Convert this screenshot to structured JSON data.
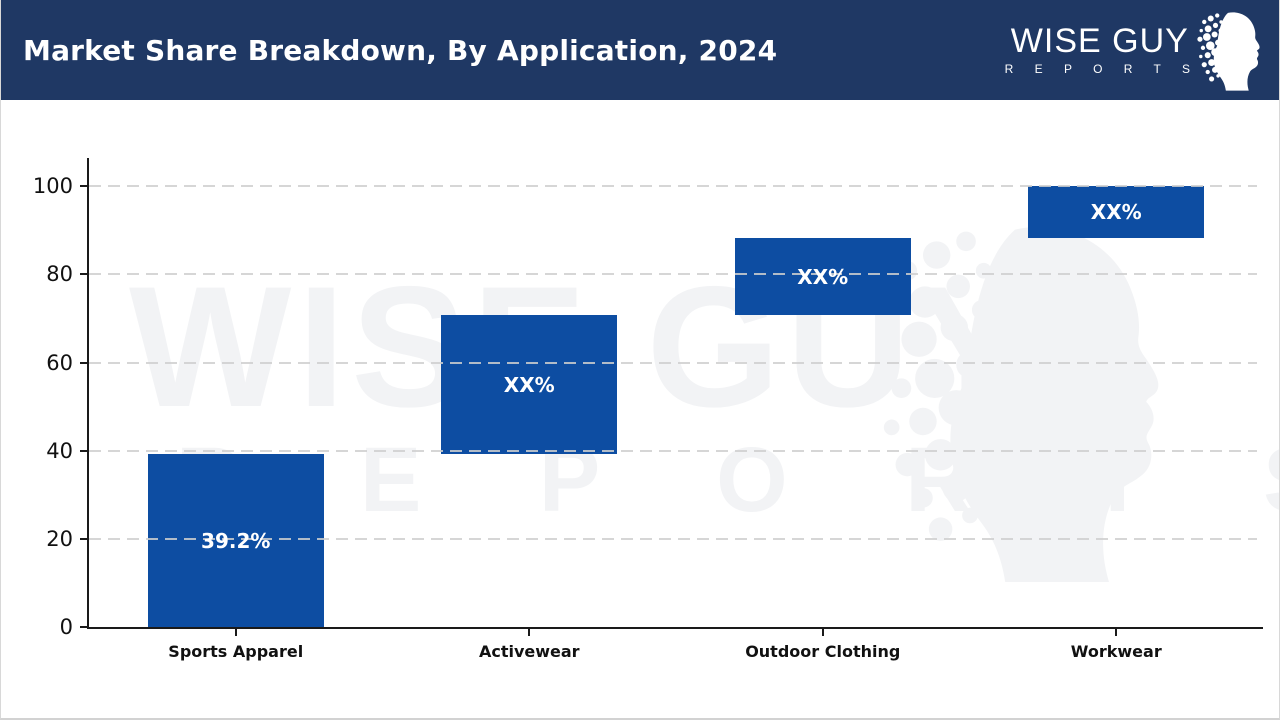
{
  "header": {
    "title": "Market Share Breakdown, By Application, 2024"
  },
  "logo": {
    "name_line": "WISE GUY",
    "sub_line": "R E P O R T S"
  },
  "watermark": {
    "line1": "WISE GUY",
    "line2": "R E P O R T S"
  },
  "colors": {
    "header_bg": "#1f3864",
    "bar_blue": "#0d4da2",
    "grid_gray": "#cfcfcf",
    "axis_black": "#1a1a1a",
    "watermark_gray": "#f2f3f5",
    "title_text": "#ffffff",
    "bar_label_text": "#ffffff"
  },
  "chart_data": {
    "type": "bar",
    "subtype": "waterfall",
    "title": "Market Share Breakdown, By Application, 2024",
    "xlabel": "",
    "ylabel": "",
    "ylim": [
      0,
      106.4
    ],
    "yticks": [
      0,
      20,
      40,
      60,
      80,
      100
    ],
    "grid": "horizontal-dashed",
    "legend": "none",
    "categories": [
      "Sports Apparel",
      "Activewear",
      "Outdoor Clothing",
      "Workwear"
    ],
    "segments": [
      {
        "category": "Sports Apparel",
        "start": 0,
        "end": 39.2,
        "estimated_value": 39.2,
        "value_label": "39.2%"
      },
      {
        "category": "Activewear",
        "start": 39.2,
        "end": 70.7,
        "estimated_value": 31.5,
        "value_label": "XX%"
      },
      {
        "category": "Outdoor Clothing",
        "start": 70.7,
        "end": 88.2,
        "estimated_value": 17.5,
        "value_label": "XX%"
      },
      {
        "category": "Workwear",
        "start": 88.2,
        "end": 100,
        "estimated_value": 11.8,
        "value_label": "XX%"
      }
    ]
  }
}
